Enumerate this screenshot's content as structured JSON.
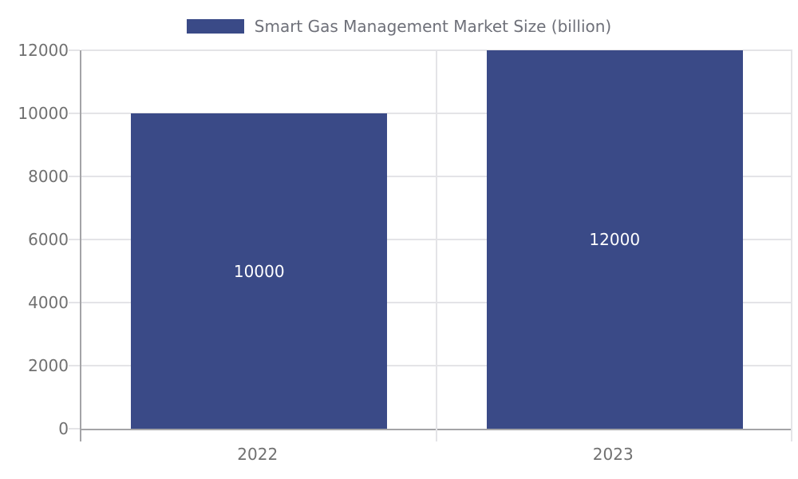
{
  "chart_data": {
    "type": "bar",
    "title": "Smart Gas Management Market Size (billion)",
    "categories": [
      "2022",
      "2023"
    ],
    "series": [
      {
        "name": "Smart Gas Management Market Size (billion)",
        "values": [
          10000,
          12000
        ]
      }
    ],
    "bar_value_labels": [
      "10000",
      "12000"
    ],
    "xlabel": "",
    "ylabel": "",
    "ylim": [
      0,
      12000
    ],
    "yticks": [
      0,
      2000,
      4000,
      6000,
      8000,
      10000,
      12000
    ],
    "grid": "on",
    "legend_position": "top-center",
    "colors": {
      "bar": "#3A4A87",
      "axis_line": "#A4A4A7",
      "grid_line": "#E4E4E7",
      "tick_label": "#707070",
      "legend_text": "#6E7079",
      "bar_label": "#FFFFFF",
      "background": "#FFFFFF"
    }
  }
}
